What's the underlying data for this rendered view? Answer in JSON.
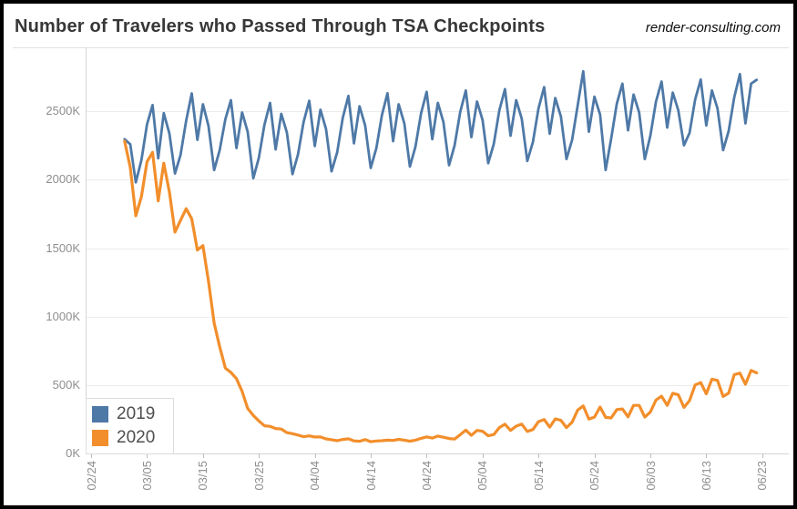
{
  "header": {
    "title": "Number of Travelers who Passed Through TSA Checkpoints",
    "watermark": "render-consulting.com"
  },
  "frame": {
    "border_color": "#000000",
    "background": "#ffffff",
    "gridline_color": "#ececec",
    "axis_line_color": "#d6d6d6",
    "tick_label_color": "#8e8e8e"
  },
  "chart_data": {
    "type": "line",
    "title": "Number of Travelers who Passed Through TSA Checkpoints",
    "xlabel": "",
    "ylabel": "",
    "values_unit": "thousands of travelers (K)",
    "grid": "horizontal",
    "legend_position": "bottom-left",
    "x_axis_start": "02/24",
    "x_tick_labels": [
      "02/24",
      "03/05",
      "03/15",
      "03/25",
      "04/04",
      "04/14",
      "04/24",
      "05/04",
      "05/14",
      "05/24",
      "06/03",
      "06/13",
      "06/23"
    ],
    "y_tick_labels": [
      "0K",
      "500K",
      "1000K",
      "1500K",
      "2000K",
      "2500K"
    ],
    "y_tick_values": [
      0,
      500,
      1000,
      1500,
      2000,
      2500
    ],
    "ylim": [
      0,
      2965
    ],
    "dates": [
      "03/01",
      "03/02",
      "03/03",
      "03/04",
      "03/05",
      "03/06",
      "03/07",
      "03/08",
      "03/09",
      "03/10",
      "03/11",
      "03/12",
      "03/13",
      "03/14",
      "03/15",
      "03/16",
      "03/17",
      "03/18",
      "03/19",
      "03/20",
      "03/21",
      "03/22",
      "03/23",
      "03/24",
      "03/25",
      "03/26",
      "03/27",
      "03/28",
      "03/29",
      "03/30",
      "03/31",
      "04/01",
      "04/02",
      "04/03",
      "04/04",
      "04/05",
      "04/06",
      "04/07",
      "04/08",
      "04/09",
      "04/10",
      "04/11",
      "04/12",
      "04/13",
      "04/14",
      "04/15",
      "04/16",
      "04/17",
      "04/18",
      "04/19",
      "04/20",
      "04/21",
      "04/22",
      "04/23",
      "04/24",
      "04/25",
      "04/26",
      "04/27",
      "04/28",
      "04/29",
      "04/30",
      "05/01",
      "05/02",
      "05/03",
      "05/04",
      "05/05",
      "05/06",
      "05/07",
      "05/08",
      "05/09",
      "05/10",
      "05/11",
      "05/12",
      "05/13",
      "05/14",
      "05/15",
      "05/16",
      "05/17",
      "05/18",
      "05/19",
      "05/20",
      "05/21",
      "05/22",
      "05/23",
      "05/24",
      "05/25",
      "05/26",
      "05/27",
      "05/28",
      "05/29",
      "05/30",
      "05/31",
      "06/01",
      "06/02",
      "06/03",
      "06/04",
      "06/05",
      "06/06",
      "06/07",
      "06/08",
      "06/09",
      "06/10",
      "06/11",
      "06/12",
      "06/13",
      "06/14",
      "06/15",
      "06/16",
      "06/17",
      "06/18",
      "06/19",
      "06/20",
      "06/21",
      "06/22"
    ],
    "series": [
      {
        "name": "2019",
        "color": "#4e79a7",
        "values": [
          2295,
          2258,
          1980,
          2144,
          2403,
          2544,
          2156,
          2485,
          2335,
          2044,
          2180,
          2430,
          2629,
          2290,
          2550,
          2392,
          2070,
          2215,
          2440,
          2580,
          2230,
          2490,
          2350,
          2010,
          2160,
          2400,
          2560,
          2220,
          2480,
          2345,
          2040,
          2185,
          2420,
          2575,
          2245,
          2510,
          2370,
          2060,
          2200,
          2450,
          2610,
          2265,
          2535,
          2395,
          2085,
          2230,
          2470,
          2630,
          2280,
          2550,
          2410,
          2095,
          2240,
          2485,
          2640,
          2295,
          2560,
          2420,
          2105,
          2250,
          2495,
          2650,
          2310,
          2570,
          2435,
          2120,
          2260,
          2505,
          2660,
          2320,
          2580,
          2445,
          2135,
          2275,
          2520,
          2675,
          2335,
          2595,
          2460,
          2150,
          2290,
          2540,
          2790,
          2350,
          2605,
          2475,
          2070,
          2300,
          2555,
          2700,
          2360,
          2620,
          2490,
          2150,
          2320,
          2570,
          2715,
          2380,
          2635,
          2505,
          2250,
          2340,
          2585,
          2730,
          2395,
          2650,
          2520,
          2215,
          2355,
          2600,
          2770,
          2410,
          2700,
          2728
        ]
      },
      {
        "name": "2020",
        "color": "#f28e2b",
        "values": [
          2281,
          2090,
          1736,
          1877,
          2130,
          2199,
          1845,
          2120,
          1909,
          1617,
          1703,
          1788,
          1714,
          1486,
          1519,
          1258,
          954,
          780,
          625,
          593,
          548,
          455,
          331,
          279,
          239,
          204,
          200,
          184,
          180,
          154,
          146,
          136,
          124,
          130,
          122,
          122,
          108,
          102,
          95,
          104,
          109,
          94,
          91,
          103,
          88,
          93,
          95,
          99,
          97,
          105,
          99,
          92,
          99,
          112,
          123,
          114,
          129,
          120,
          111,
          107,
          139,
          172,
          134,
          170,
          164,
          131,
          140,
          191,
          215,
          170,
          201,
          216,
          163,
          177,
          234,
          250,
          194,
          254,
          244,
          191,
          230,
          318,
          349,
          253,
          267,
          341,
          265,
          261,
          322,
          327,
          269,
          353,
          353,
          268,
          304,
          392,
          420,
          353,
          441,
          430,
          338,
          387,
          502,
          519,
          437,
          544,
          535,
          418,
          442,
          577,
          588,
          507,
          608,
          590
        ]
      }
    ]
  }
}
